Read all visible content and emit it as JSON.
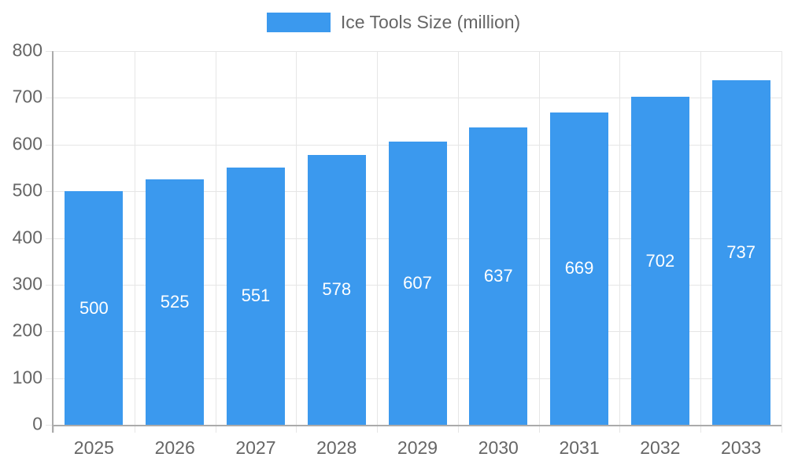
{
  "chart_data": {
    "type": "bar",
    "title": "Ice Tools Size (million)",
    "legend_position": "top",
    "grid": true,
    "categories": [
      "2025",
      "2026",
      "2027",
      "2028",
      "2029",
      "2030",
      "2031",
      "2032",
      "2033"
    ],
    "values": [
      500,
      525,
      551,
      578,
      607,
      637,
      669,
      702,
      737
    ],
    "value_labels": [
      "500",
      "525",
      "551",
      "578",
      "607",
      "637",
      "669",
      "702",
      "737"
    ],
    "xlabel": "",
    "ylabel": "",
    "ylim": [
      0,
      800
    ],
    "ytick_step": 100,
    "y_ticks": [
      "0",
      "100",
      "200",
      "300",
      "400",
      "500",
      "600",
      "700",
      "800"
    ],
    "colors": {
      "bar": "#3b99ee",
      "bar_label_text": "#ffffff",
      "axis_text": "#666666",
      "gridline": "#e6e6e6",
      "axis_line": "#ababab",
      "background": "#ffffff"
    }
  }
}
